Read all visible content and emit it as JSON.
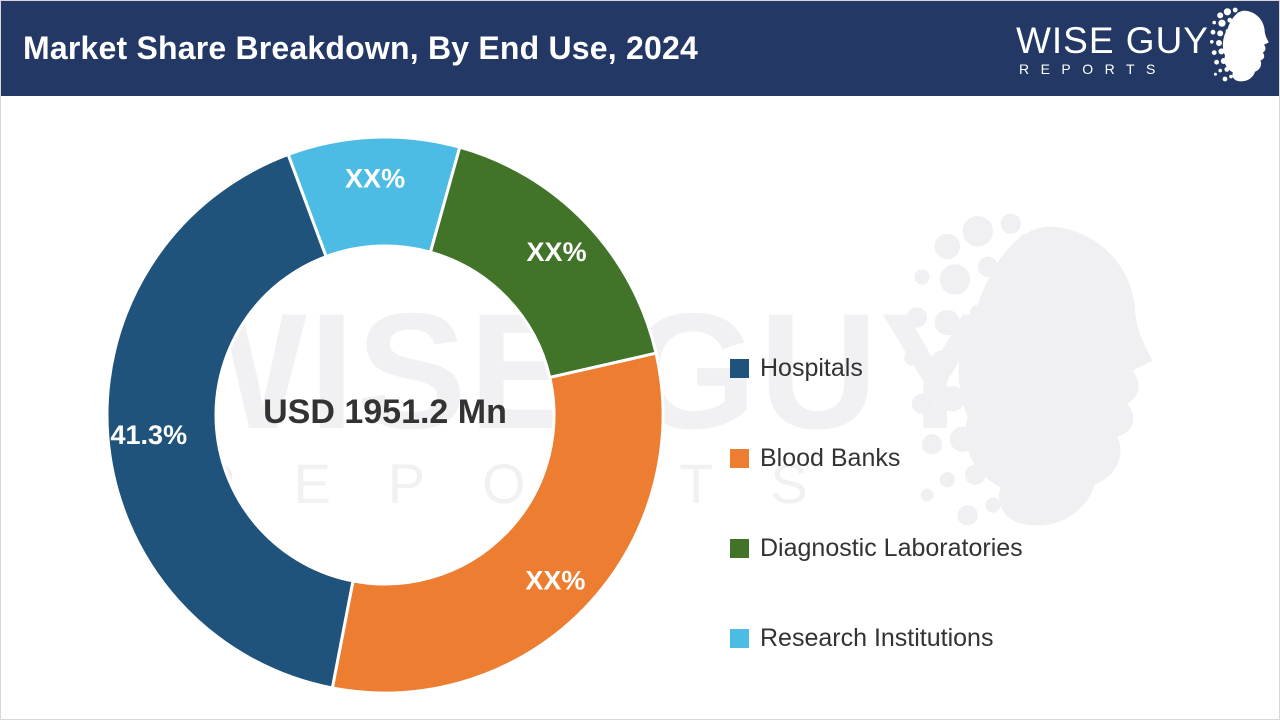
{
  "header": {
    "title": "Market Share Breakdown, By End Use, 2024",
    "logo": {
      "line1": "WISE GUY",
      "line2": "REPORTS"
    }
  },
  "watermark": {
    "line1": "WISE GUY",
    "line2": "REPORTS"
  },
  "chart_data": {
    "type": "pie",
    "subtype": "donut",
    "title": "Market Share Breakdown, By End Use, 2024",
    "center_label": "USD 1951.2 Mn",
    "start_angle_deg": -20.4,
    "legend_position": "right",
    "slices": [
      {
        "name": "Research Institutions",
        "value_pct": 10.0,
        "label": "XX%",
        "color": "#4DBCE5"
      },
      {
        "name": "Diagnostic Laboratories",
        "value_pct": 17.1,
        "label": "XX%",
        "color": "#417328"
      },
      {
        "name": "Blood Banks",
        "value_pct": 31.6,
        "label": "XX%",
        "color": "#ED7D31"
      },
      {
        "name": "Hospitals",
        "value_pct": 41.3,
        "label": "41.3%",
        "color": "#1F537C"
      }
    ],
    "legend": [
      {
        "name": "Hospitals",
        "color": "#1F537C"
      },
      {
        "name": "Blood Banks",
        "color": "#ED7D31"
      },
      {
        "name": "Diagnostic Laboratories",
        "color": "#417328"
      },
      {
        "name": "Research Institutions",
        "color": "#4DBCE5"
      }
    ]
  },
  "colors": {
    "header_bg": "#233864",
    "header_text": "#FFFFFF",
    "center_text": "#333333",
    "watermark": "#F1F1F4",
    "page_border": "#D8D8D8"
  }
}
